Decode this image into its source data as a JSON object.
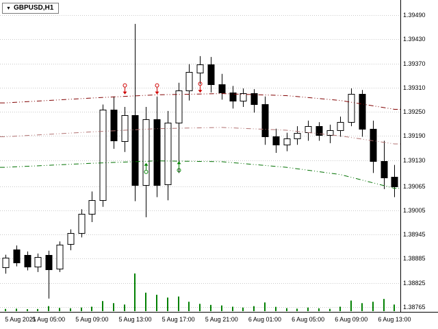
{
  "window": {
    "symbol_label": "GBPUSD,H1",
    "dropdown_icon": "▼"
  },
  "colors": {
    "background": "#FFFFFF",
    "text": "#000000",
    "grid": "#C8C8C8",
    "axis_border": "#000000",
    "bull_body": "#FFFFFF",
    "bear_body": "#000000",
    "candle_outline": "#000000",
    "volume": "#008000",
    "upper_band": "#800000",
    "middle_band": "#B07070",
    "lower_band": "#007000",
    "sell_signal": "#D00000",
    "buy_signal": "#008000"
  },
  "chart_data": {
    "type": "candlestick",
    "title": "GBPUSD,H1",
    "symbol": "GBPUSD",
    "timeframe": "H1",
    "grid": "horizontal-dotted",
    "legend": "none",
    "price_axis": {
      "labels": [
        "1.39490",
        "1.39430",
        "1.39370",
        "1.39310",
        "1.39250",
        "1.39190",
        "1.39130",
        "1.39065",
        "1.39005",
        "1.38945",
        "1.38885",
        "1.38825",
        "1.38765"
      ],
      "values": [
        1.3949,
        1.3943,
        1.3937,
        1.3931,
        1.3925,
        1.3919,
        1.3913,
        1.39065,
        1.39005,
        1.38945,
        1.38885,
        1.38825,
        1.38765
      ]
    },
    "time_axis": {
      "labels": [
        "5 Aug 2021",
        "5 Aug 05:00",
        "5 Aug 09:00",
        "5 Aug 13:00",
        "5 Aug 17:00",
        "5 Aug 21:00",
        "6 Aug 01:00",
        "6 Aug 05:00",
        "6 Aug 09:00",
        "6 Aug 13:00"
      ],
      "candle_indices": [
        0,
        4,
        8,
        12,
        16,
        20,
        24,
        28,
        32,
        36
      ]
    },
    "candles": [
      {
        "t": "5 Aug 01:00",
        "o": 1.38865,
        "h": 1.38895,
        "l": 1.38848,
        "c": 1.38888
      },
      {
        "t": "5 Aug 02:00",
        "o": 1.38908,
        "h": 1.38918,
        "l": 1.38866,
        "c": 1.38876
      },
      {
        "t": "5 Aug 03:00",
        "o": 1.38895,
        "h": 1.38903,
        "l": 1.38856,
        "c": 1.38866
      },
      {
        "t": "5 Aug 04:00",
        "o": 1.38866,
        "h": 1.38898,
        "l": 1.38852,
        "c": 1.3889
      },
      {
        "t": "5 Aug 05:00",
        "o": 1.38895,
        "h": 1.38905,
        "l": 1.38786,
        "c": 1.3886
      },
      {
        "t": "5 Aug 06:00",
        "o": 1.3886,
        "h": 1.38928,
        "l": 1.38852,
        "c": 1.3892
      },
      {
        "t": "5 Aug 07:00",
        "o": 1.3892,
        "h": 1.38958,
        "l": 1.38906,
        "c": 1.38948
      },
      {
        "t": "5 Aug 08:00",
        "o": 1.38948,
        "h": 1.39008,
        "l": 1.38938,
        "c": 1.38996
      },
      {
        "t": "5 Aug 09:00",
        "o": 1.38996,
        "h": 1.39052,
        "l": 1.38976,
        "c": 1.3903
      },
      {
        "t": "5 Aug 10:00",
        "o": 1.3903,
        "h": 1.39268,
        "l": 1.39014,
        "c": 1.39255
      },
      {
        "t": "5 Aug 11:00",
        "o": 1.39255,
        "h": 1.39288,
        "l": 1.39158,
        "c": 1.39178
      },
      {
        "t": "5 Aug 12:00",
        "o": 1.39178,
        "h": 1.39262,
        "l": 1.3915,
        "c": 1.39242
      },
      {
        "t": "5 Aug 13:00",
        "o": 1.39242,
        "h": 1.39468,
        "l": 1.39028,
        "c": 1.39068
      },
      {
        "t": "5 Aug 14:00",
        "o": 1.39068,
        "h": 1.39262,
        "l": 1.38988,
        "c": 1.39232
      },
      {
        "t": "5 Aug 15:00",
        "o": 1.39232,
        "h": 1.39288,
        "l": 1.39038,
        "c": 1.39068
      },
      {
        "t": "5 Aug 16:00",
        "o": 1.39068,
        "h": 1.39252,
        "l": 1.3903,
        "c": 1.39222
      },
      {
        "t": "5 Aug 17:00",
        "o": 1.39222,
        "h": 1.39322,
        "l": 1.39098,
        "c": 1.39302
      },
      {
        "t": "5 Aug 18:00",
        "o": 1.39302,
        "h": 1.39368,
        "l": 1.39278,
        "c": 1.39348
      },
      {
        "t": "5 Aug 19:00",
        "o": 1.39348,
        "h": 1.39388,
        "l": 1.39318,
        "c": 1.39368
      },
      {
        "t": "5 Aug 20:00",
        "o": 1.39368,
        "h": 1.39386,
        "l": 1.39298,
        "c": 1.39318
      },
      {
        "t": "5 Aug 21:00",
        "o": 1.39318,
        "h": 1.39344,
        "l": 1.3928,
        "c": 1.39298
      },
      {
        "t": "5 Aug 22:00",
        "o": 1.39298,
        "h": 1.39314,
        "l": 1.39258,
        "c": 1.39278
      },
      {
        "t": "5 Aug 23:00",
        "o": 1.39278,
        "h": 1.39308,
        "l": 1.39262,
        "c": 1.39296
      },
      {
        "t": "6 Aug 00:00",
        "o": 1.39296,
        "h": 1.39306,
        "l": 1.39248,
        "c": 1.39268
      },
      {
        "t": "6 Aug 01:00",
        "o": 1.39268,
        "h": 1.39288,
        "l": 1.39168,
        "c": 1.39188
      },
      {
        "t": "6 Aug 02:00",
        "o": 1.39188,
        "h": 1.39208,
        "l": 1.39148,
        "c": 1.39168
      },
      {
        "t": "6 Aug 03:00",
        "o": 1.39168,
        "h": 1.39198,
        "l": 1.39152,
        "c": 1.39184
      },
      {
        "t": "6 Aug 04:00",
        "o": 1.39184,
        "h": 1.39214,
        "l": 1.39168,
        "c": 1.39198
      },
      {
        "t": "6 Aug 05:00",
        "o": 1.39198,
        "h": 1.39228,
        "l": 1.39178,
        "c": 1.39214
      },
      {
        "t": "6 Aug 06:00",
        "o": 1.39214,
        "h": 1.39224,
        "l": 1.39178,
        "c": 1.39192
      },
      {
        "t": "6 Aug 07:00",
        "o": 1.39192,
        "h": 1.39218,
        "l": 1.39172,
        "c": 1.39204
      },
      {
        "t": "6 Aug 08:00",
        "o": 1.39204,
        "h": 1.39238,
        "l": 1.39188,
        "c": 1.39224
      },
      {
        "t": "6 Aug 09:00",
        "o": 1.39224,
        "h": 1.39308,
        "l": 1.39214,
        "c": 1.39294
      },
      {
        "t": "6 Aug 10:00",
        "o": 1.39294,
        "h": 1.39304,
        "l": 1.39188,
        "c": 1.39208
      },
      {
        "t": "6 Aug 11:00",
        "o": 1.39208,
        "h": 1.39228,
        "l": 1.39098,
        "c": 1.39128
      },
      {
        "t": "6 Aug 12:00",
        "o": 1.39128,
        "h": 1.39178,
        "l": 1.39058,
        "c": 1.39088
      },
      {
        "t": "6 Aug 13:00",
        "o": 1.39088,
        "h": 1.39118,
        "l": 1.39038,
        "c": 1.39064
      }
    ],
    "volumes": [
      320,
      360,
      290,
      310,
      720,
      460,
      410,
      520,
      640,
      1450,
      1150,
      950,
      5400,
      2650,
      2350,
      1950,
      2100,
      1350,
      1050,
      900,
      820,
      640,
      520,
      720,
      1250,
      620,
      430,
      360,
      520,
      410,
      330,
      640,
      1520,
      1150,
      1350,
      1750,
      950
    ],
    "indicator_lines": [
      {
        "name": "upper-band",
        "color_key": "upper_band",
        "style": "dash-dot-dot",
        "points": [
          [
            0,
            1.39272
          ],
          [
            8,
            1.39284
          ],
          [
            14,
            1.39292
          ],
          [
            20,
            1.39295
          ],
          [
            26,
            1.3929
          ],
          [
            31,
            1.39278
          ],
          [
            36,
            1.39256
          ]
        ]
      },
      {
        "name": "middle-band",
        "color_key": "middle_band",
        "style": "dash-dot-dot",
        "points": [
          [
            0,
            1.39188
          ],
          [
            8,
            1.392
          ],
          [
            14,
            1.39208
          ],
          [
            20,
            1.39211
          ],
          [
            26,
            1.39204
          ],
          [
            31,
            1.3919
          ],
          [
            36,
            1.3917
          ]
        ]
      },
      {
        "name": "lower-band",
        "color_key": "lower_band",
        "style": "dash-dot-dot",
        "points": [
          [
            0,
            1.39112
          ],
          [
            8,
            1.39122
          ],
          [
            14,
            1.39128
          ],
          [
            20,
            1.39126
          ],
          [
            26,
            1.39112
          ],
          [
            31,
            1.39094
          ],
          [
            36,
            1.3906
          ]
        ]
      }
    ],
    "signals": {
      "sell": [
        {
          "index": 11,
          "price": 1.393
        },
        {
          "index": 14,
          "price": 1.393
        },
        {
          "index": 18,
          "price": 1.39304
        }
      ],
      "buy": [
        {
          "index": 13,
          "price": 1.39116
        },
        {
          "index": 16,
          "price": 1.3912
        }
      ]
    }
  }
}
